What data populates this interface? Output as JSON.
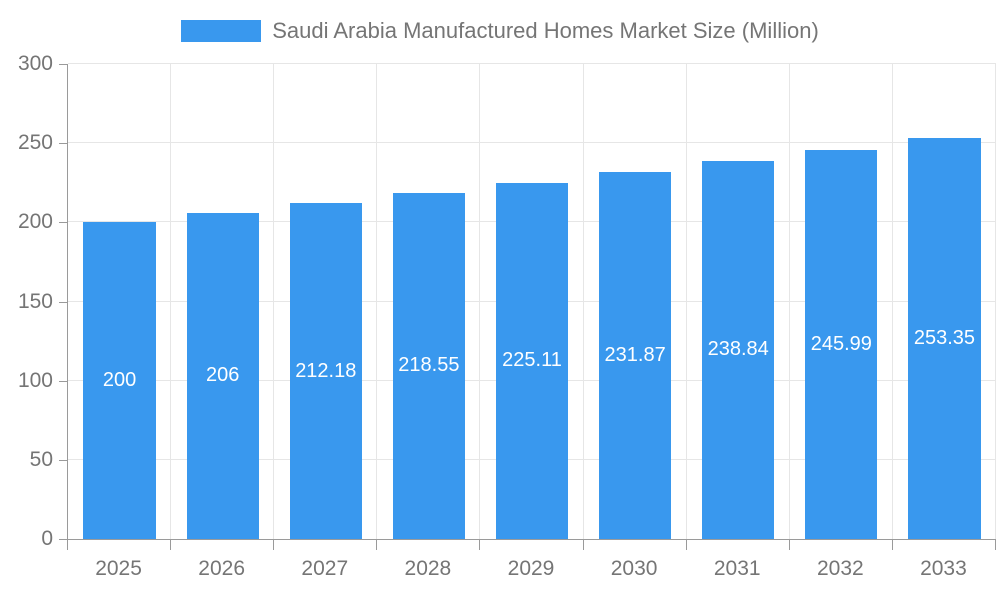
{
  "chart_data": {
    "type": "bar",
    "title": "Saudi Arabia Manufactured Homes Market Size (Million)",
    "categories": [
      "2025",
      "2026",
      "2027",
      "2028",
      "2029",
      "2030",
      "2031",
      "2032",
      "2033"
    ],
    "values": [
      200,
      206,
      212.18,
      218.55,
      225.11,
      231.87,
      238.84,
      245.99,
      253.35
    ],
    "value_labels": [
      "200",
      "206",
      "212.18",
      "218.55",
      "225.11",
      "231.87",
      "238.84",
      "245.99",
      "253.35"
    ],
    "xlabel": "",
    "ylabel": "",
    "ylim": [
      0,
      300
    ],
    "yticks": [
      0,
      50,
      100,
      150,
      200,
      250,
      300
    ],
    "grid": "on",
    "legend_position": "top-center",
    "colors": {
      "bar": "#3998ee",
      "grid": "#e6e6e6",
      "axis": "#9a9a9a",
      "axis_text": "#757575",
      "title_text": "#757575",
      "bar_label_text": "#ffffff",
      "background": "#ffffff"
    }
  }
}
